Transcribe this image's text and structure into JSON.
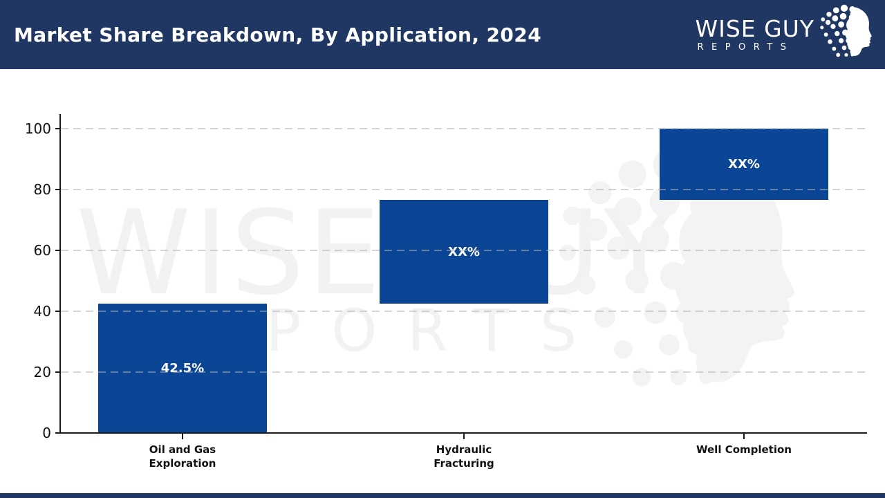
{
  "header": {
    "title": "Market Share Breakdown, By Application, 2024"
  },
  "logo": {
    "line1": "WISE GUY",
    "line2": "REPORTS"
  },
  "watermark": {
    "line1": "WISE GUY",
    "line2": "REPORTS"
  },
  "colors": {
    "header_bg": "#213763",
    "footer_bg": "#213763",
    "bar": "#0b4596",
    "bar_label": "#ffffff",
    "grid": "#d6d6d6",
    "axis": "#1a1a1a",
    "watermark": "#f2f2f4"
  },
  "chart_data": {
    "type": "bar",
    "subtype": "floating-segment-breakdown",
    "title": "Market Share Breakdown, By Application, 2024",
    "categories": [
      "Oil and Gas\nExploration",
      "Hydraulic\nFracturing",
      "Well Completion"
    ],
    "segments": [
      {
        "category": "Oil and Gas Exploration",
        "label": "42.5%",
        "start": 0,
        "end": 42.5,
        "value_hidden": false
      },
      {
        "category": "Hydraulic Fracturing",
        "label": "XX%",
        "start": 42.5,
        "end": 76.5,
        "value_hidden": true
      },
      {
        "category": "Well Completion",
        "label": "XX%",
        "start": 76.5,
        "end": 100,
        "value_hidden": true
      }
    ],
    "ylim": [
      0,
      100
    ],
    "yticks": [
      0,
      20,
      40,
      60,
      80,
      100
    ],
    "grid": "horizontal dashed, drawn over bars",
    "legend": "none",
    "bar_color": "#0b4596",
    "label_color": "#ffffff"
  }
}
